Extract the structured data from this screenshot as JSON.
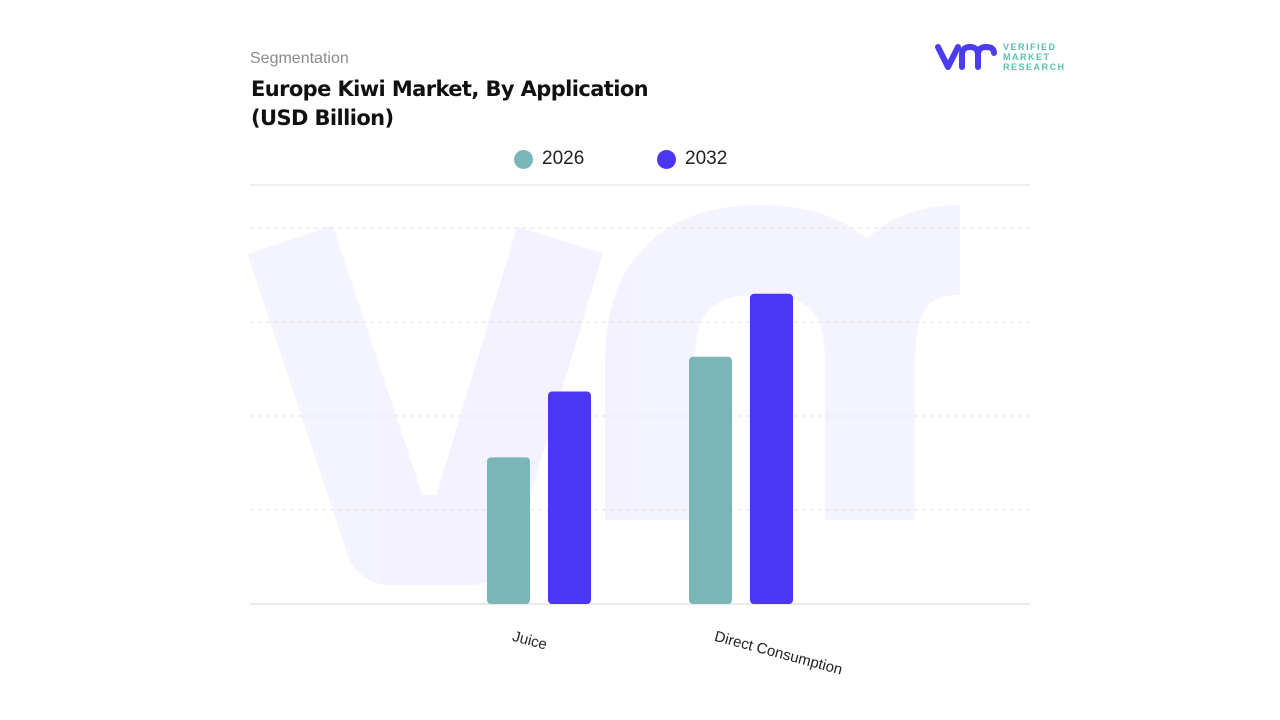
{
  "header": {
    "segment_label": "Segmentation",
    "title": "Europe Kiwi Market, By Application (USD Billion)"
  },
  "logo": {
    "text_lines": [
      "VERIFIED",
      "MARKET",
      "RESEARCH"
    ],
    "color_mark": "#4b3cf0",
    "color_text": "#5bbfb1"
  },
  "chart_data": {
    "type": "bar",
    "title": "Europe Kiwi Market, By Application (USD Billion)",
    "categories": [
      "Juice",
      "Direct Consumption"
    ],
    "series": [
      {
        "name": "2026",
        "color": "#7ab5b8",
        "values": [
          1.56,
          2.63
        ]
      },
      {
        "name": "2032",
        "color": "#4b36f5",
        "values": [
          2.26,
          3.3
        ]
      }
    ],
    "ylim": [
      0,
      4
    ],
    "y_tick_labels_shown": false,
    "grid": true,
    "legend_placement": "top-center",
    "xlabel": "",
    "ylabel": ""
  }
}
